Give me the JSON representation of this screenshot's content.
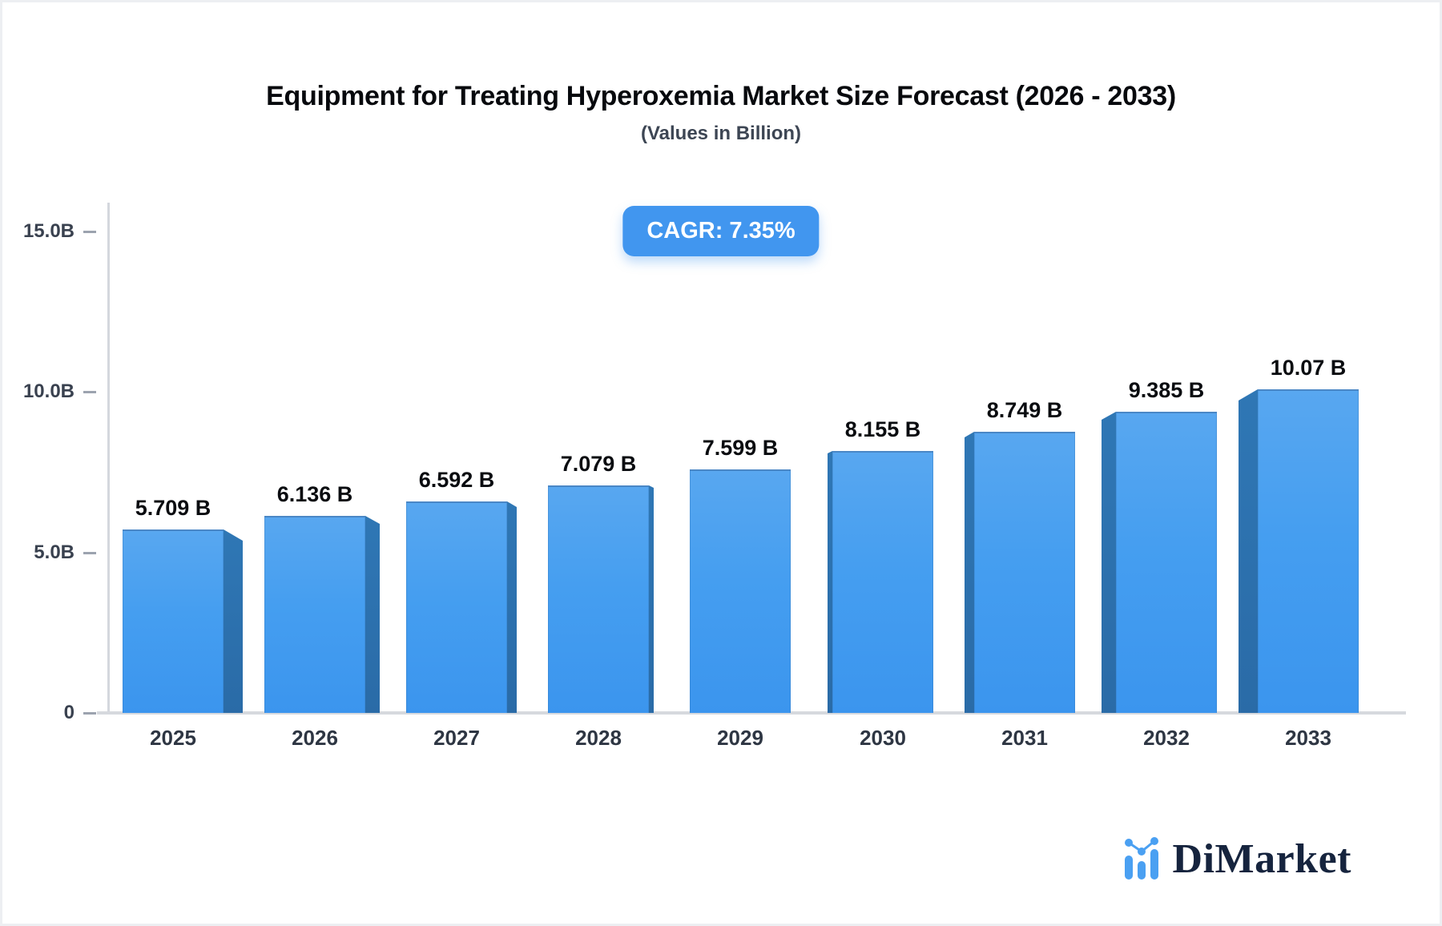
{
  "header": {
    "title": "Equipment for Treating Hyperoxemia Market Size Forecast (2026 - 2033)",
    "subtitle": "(Values in Billion)",
    "cagr_badge": "CAGR: 7.35%"
  },
  "logo": {
    "text": "DiMarket",
    "icon": "bar-chart-logo-icon"
  },
  "colors": {
    "bar_front_top": "#58a7f0",
    "bar_front_bottom": "#3b95ee",
    "bar_side": "#2e74b2",
    "badge_blue": "#4196ef",
    "axis_gray": "#d4d7dd",
    "logo_navy": "#16243e",
    "logo_blue": "#4aa0f2"
  },
  "chart_data": {
    "type": "bar",
    "title": "Equipment for Treating Hyperoxemia Market Size Forecast (2026 - 2033)",
    "subtitle": "(Values in Billion)",
    "categories": [
      "2025",
      "2026",
      "2027",
      "2028",
      "2029",
      "2030",
      "2031",
      "2032",
      "2033"
    ],
    "values": [
      5.709,
      6.136,
      6.592,
      7.079,
      7.599,
      8.155,
      8.749,
      9.385,
      10.07
    ],
    "value_labels": [
      "5.709 B",
      "6.136 B",
      "6.592 B",
      "7.079 B",
      "7.599 B",
      "8.155 B",
      "8.749 B",
      "9.385 B",
      "10.07 B"
    ],
    "xlabel": "",
    "ylabel": "",
    "ylim": [
      0,
      15
    ],
    "y_ticks": [
      {
        "value": 15,
        "label": "15.0B"
      },
      {
        "value": 10,
        "label": "10.0B"
      },
      {
        "value": 5,
        "label": "5.0B"
      },
      {
        "value": 0,
        "label": "0"
      }
    ],
    "grid": false,
    "legend": false,
    "style": "3d-perspective-bars, vanishing point at center column"
  }
}
